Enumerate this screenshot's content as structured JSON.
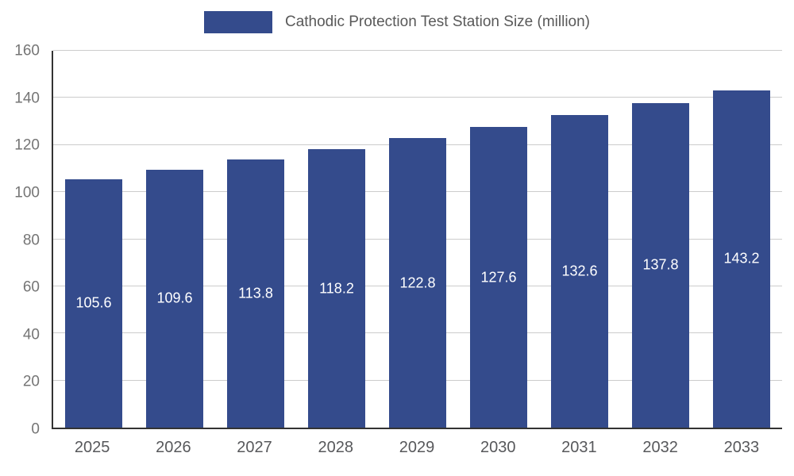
{
  "chart_data": {
    "type": "bar",
    "title": "Cathodic Protection Test Station Size (million)",
    "categories": [
      "2025",
      "2026",
      "2027",
      "2028",
      "2029",
      "2030",
      "2031",
      "2032",
      "2033"
    ],
    "values": [
      105.6,
      109.6,
      113.8,
      118.2,
      122.8,
      127.6,
      132.6,
      137.8,
      143.2
    ],
    "xlabel": "",
    "ylabel": "",
    "ylim": [
      0,
      160
    ],
    "yticks": [
      0,
      20,
      40,
      60,
      80,
      100,
      120,
      140,
      160
    ],
    "grid": true,
    "legend_position": "top",
    "bar_color": "#344B8C",
    "value_label_color": "#ffffff",
    "grid_color": "#cccccc",
    "axis_color": "#333333"
  }
}
